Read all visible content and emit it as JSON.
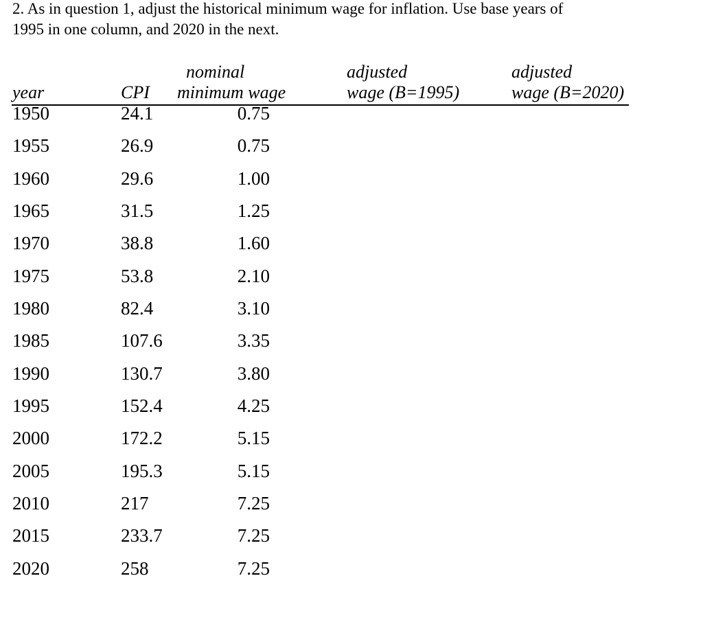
{
  "page": {
    "background_color": "#ffffff",
    "text_color": "#000000",
    "rule_color": "#000000"
  },
  "question": {
    "line1": "2. As in question 1, adjust the historical minimum wage for inflation. Use base years of",
    "line2": "1995 in one column, and 2020 in the next."
  },
  "table": {
    "headers": {
      "year": {
        "top": "",
        "bottom": "year"
      },
      "cpi": {
        "top": "",
        "bottom": "CPI"
      },
      "nominal": {
        "top": "nominal",
        "bottom": "minimum wage"
      },
      "adj1995": {
        "top": "adjusted",
        "bottom": "wage (B=1995)"
      },
      "adj2020": {
        "top": "adjusted",
        "bottom": "wage (B=2020)"
      }
    },
    "rows": [
      {
        "year": "1950",
        "cpi": "24.1",
        "wage": "0.75",
        "adj1995": "",
        "adj2020": ""
      },
      {
        "year": "1955",
        "cpi": "26.9",
        "wage": "0.75",
        "adj1995": "",
        "adj2020": ""
      },
      {
        "year": "1960",
        "cpi": "29.6",
        "wage": "1.00",
        "adj1995": "",
        "adj2020": ""
      },
      {
        "year": "1965",
        "cpi": "31.5",
        "wage": "1.25",
        "adj1995": "",
        "adj2020": ""
      },
      {
        "year": "1970",
        "cpi": "38.8",
        "wage": "1.60",
        "adj1995": "",
        "adj2020": ""
      },
      {
        "year": "1975",
        "cpi": "53.8",
        "wage": "2.10",
        "adj1995": "",
        "adj2020": ""
      },
      {
        "year": "1980",
        "cpi": "82.4",
        "wage": "3.10",
        "adj1995": "",
        "adj2020": ""
      },
      {
        "year": "1985",
        "cpi": "107.6",
        "wage": "3.35",
        "adj1995": "",
        "adj2020": ""
      },
      {
        "year": "1990",
        "cpi": "130.7",
        "wage": "3.80",
        "adj1995": "",
        "adj2020": ""
      },
      {
        "year": "1995",
        "cpi": "152.4",
        "wage": "4.25",
        "adj1995": "",
        "adj2020": ""
      },
      {
        "year": "2000",
        "cpi": "172.2",
        "wage": "5.15",
        "adj1995": "",
        "adj2020": ""
      },
      {
        "year": "2005",
        "cpi": "195.3",
        "wage": "5.15",
        "adj1995": "",
        "adj2020": ""
      },
      {
        "year": "2010",
        "cpi": "217",
        "wage": "7.25",
        "adj1995": "",
        "adj2020": ""
      },
      {
        "year": "2015",
        "cpi": "233.7",
        "wage": "7.25",
        "adj1995": "",
        "adj2020": ""
      },
      {
        "year": "2020",
        "cpi": "258",
        "wage": "7.25",
        "adj1995": "",
        "adj2020": ""
      }
    ]
  }
}
